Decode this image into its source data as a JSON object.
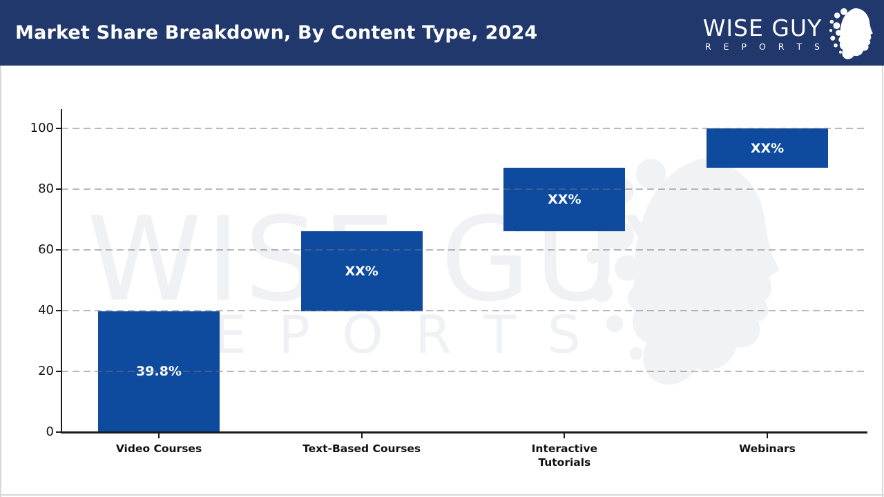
{
  "header": {
    "title": "Market Share Breakdown, By Content Type, 2024",
    "logo": {
      "line1": "WISE GUY",
      "line2": "R E P O R T S"
    }
  },
  "watermark": {
    "line1": "WISE GUY",
    "line2": "R E P O R T S"
  },
  "chart_data": {
    "type": "bar",
    "subtype": "waterfall",
    "title": "Market Share Breakdown, By Content Type, 2024",
    "categories": [
      "Video Courses",
      "Text-Based Courses",
      "Interactive\nTutorials",
      "Webinars"
    ],
    "segments": [
      {
        "category": "Video Courses",
        "start": 0,
        "end": 39.8,
        "label": "39.8%"
      },
      {
        "category": "Text-Based Courses",
        "start": 39.8,
        "end": 66.2,
        "label": "XX%"
      },
      {
        "category": "Interactive Tutorials",
        "start": 66.2,
        "end": 87.0,
        "label": "XX%"
      },
      {
        "category": "Webinars",
        "start": 87.0,
        "end": 100.0,
        "label": "XX%"
      }
    ],
    "xlabel": "",
    "ylabel": "",
    "ylim": [
      0,
      105
    ],
    "yticks": [
      0,
      20,
      40,
      60,
      80,
      100
    ],
    "grid": "dashed-horizontal",
    "legend": "none"
  },
  "colors": {
    "header_bg": "#20386b",
    "bar": "#0e4b9f",
    "grid": "#9aa0a6",
    "axis": "#1a1a1a",
    "watermark": "#f0f1f4",
    "frame": "#d9d9d9"
  }
}
